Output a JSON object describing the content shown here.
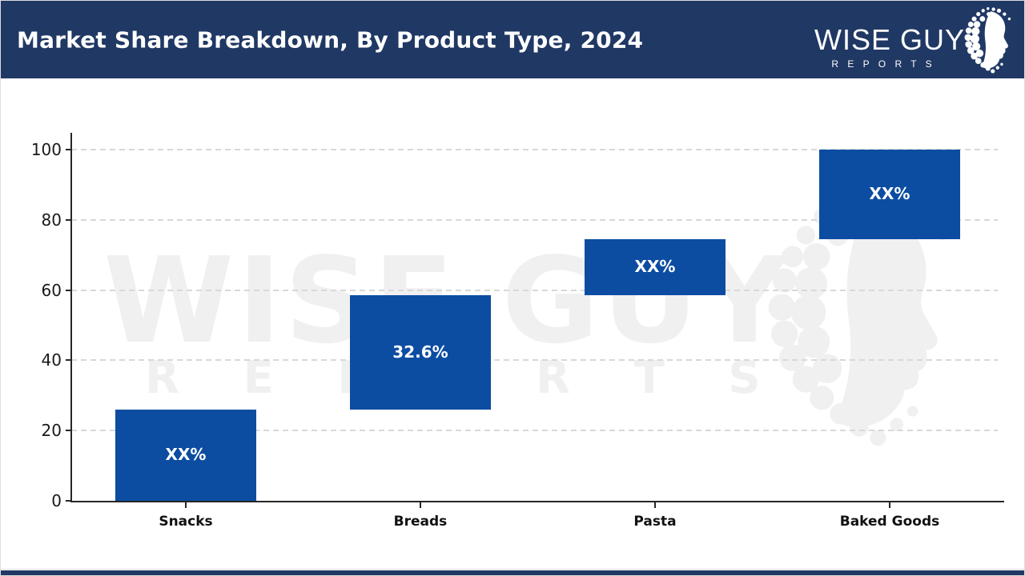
{
  "header": {
    "title": "Market Share Breakdown, By Product Type, 2024",
    "brand": {
      "name": "WISE GUY",
      "sub": "R E P O R T S"
    }
  },
  "watermark": {
    "name": "WISE GUY",
    "sub": "R E P O R T S"
  },
  "chart_data": {
    "type": "bar",
    "variant": "waterfall",
    "title": "Market Share Breakdown, By Product Type, 2024",
    "categories": [
      "Snacks",
      "Breads",
      "Pasta",
      "Baked Goods"
    ],
    "segments": [
      {
        "category": "Snacks",
        "start": 0,
        "end": 25.9,
        "value": 25.9,
        "label": "XX%"
      },
      {
        "category": "Breads",
        "start": 25.9,
        "end": 58.5,
        "value": 32.6,
        "label": "32.6%"
      },
      {
        "category": "Pasta",
        "start": 58.5,
        "end": 74.4,
        "value": 15.9,
        "label": "XX%"
      },
      {
        "category": "Baked Goods",
        "start": 74.4,
        "end": 100,
        "value": 25.6,
        "label": "XX%"
      }
    ],
    "xlabel": "",
    "ylabel": "",
    "ylim": [
      0,
      100
    ],
    "yticks": [
      0,
      20,
      40,
      60,
      80,
      100
    ],
    "grid": {
      "axis": "y",
      "style": "dashed",
      "color": "#d8d8d8"
    },
    "legend": null,
    "colors": {
      "bar": "#0c4da2",
      "bar_label": "#ffffff",
      "axis": "#262626",
      "tick_label": "#1a1a1a"
    }
  },
  "theme": {
    "header_bg": "#203864",
    "footer_bg": "#203864",
    "page_bg": "#ffffff",
    "border": "#d9d9d9",
    "watermark_color": "#f0f0f1"
  }
}
